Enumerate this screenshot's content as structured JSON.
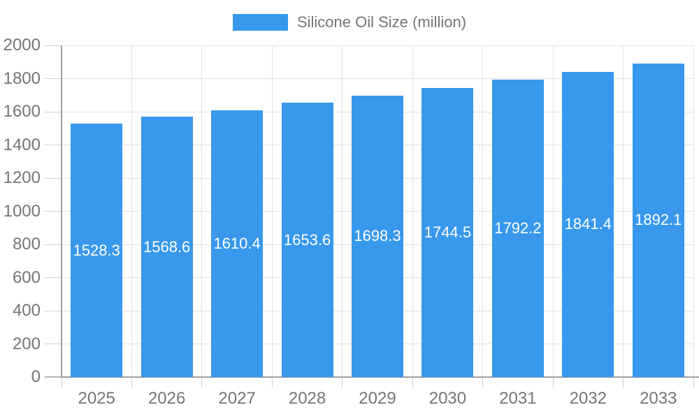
{
  "legend": {
    "label": "Silicone Oil Size (million)"
  },
  "chart_data": {
    "type": "bar",
    "title": "Silicone Oil Size (million)",
    "categories": [
      "2025",
      "2026",
      "2027",
      "2028",
      "2029",
      "2030",
      "2031",
      "2032",
      "2033"
    ],
    "series": [
      {
        "name": "Silicone Oil Size (million)",
        "values": [
          1528.3,
          1568.6,
          1610.4,
          1653.6,
          1698.3,
          1744.5,
          1792.2,
          1841.4,
          1892.1
        ],
        "value_labels": [
          "1528.3",
          "1568.6",
          "1610.4",
          "1653.6",
          "1698.3",
          "1744.5",
          "1792.2",
          "1841.4",
          "1892.1"
        ],
        "color": "#3898ec"
      }
    ],
    "xlabel": "",
    "ylabel": "",
    "ylim": [
      0,
      2000
    ],
    "ytick_step": 200,
    "ytick_labels": [
      "0",
      "200",
      "400",
      "600",
      "800",
      "1000",
      "1200",
      "1400",
      "1600",
      "1800",
      "2000"
    ],
    "grid": true,
    "legend_position": "top",
    "value_label_position": "center-inside-bar"
  },
  "colors": {
    "bar": "#3898ec",
    "bar_label": "#ffffff",
    "axis_line": "#9e9e9e",
    "grid_line": "#e3e3e3",
    "tick_mark": "#d0d0d0",
    "tick_text": "#757575",
    "legend_text": "#757575",
    "background": "#ffffff"
  }
}
